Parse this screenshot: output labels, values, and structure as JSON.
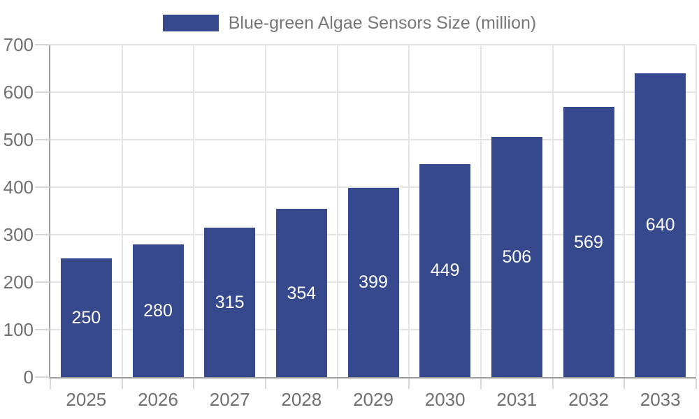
{
  "legend": {
    "label": "Blue-green Algae Sensors Size (million)"
  },
  "colors": {
    "bar_fill": "#36498D",
    "axis_line": "#9E9E9E",
    "grid_line": "#E4E4E4",
    "tick_line": "#D8D8D8",
    "axis_label_text": "#707070",
    "legend_text": "#777777",
    "value_label_text": "#FFFFFF",
    "background": "#FFFFFF"
  },
  "chart_data": {
    "type": "bar",
    "title": "Blue-green Algae Sensors Size (million)",
    "categories": [
      "2025",
      "2026",
      "2027",
      "2028",
      "2029",
      "2030",
      "2031",
      "2032",
      "2033"
    ],
    "values": [
      250,
      280,
      315,
      354,
      399,
      449,
      506,
      569,
      640
    ],
    "xlabel": "",
    "ylabel": "",
    "ylim": [
      0,
      700
    ],
    "y_tick_step": 100,
    "y_tick_labels": [
      "0",
      "100",
      "200",
      "300",
      "400",
      "500",
      "600",
      "700"
    ],
    "grid": true,
    "legend_position": "top-center",
    "value_label_position": "inside-center"
  }
}
